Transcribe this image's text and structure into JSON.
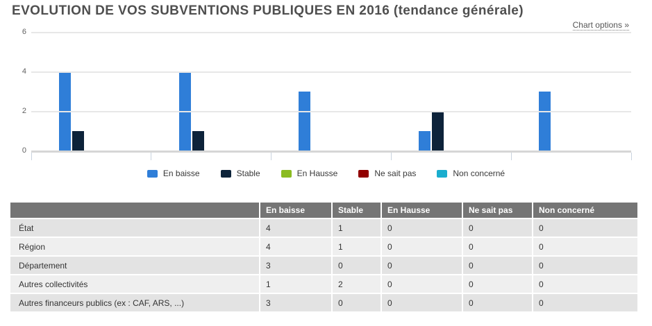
{
  "header": {
    "title": "EVOLUTION DE VOS SUBVENTIONS PUBLIQUES EN 2016 (tendance générale)",
    "chart_options_label": "Chart options »"
  },
  "chart_data": {
    "type": "bar",
    "categories": [
      "État",
      "Région",
      "Département",
      "Autres collectivités",
      "Autres financeurs publics (ex : CAF, ARS, ...)"
    ],
    "series": [
      {
        "name": "En baisse",
        "color": "#2f7ed8",
        "values": [
          4,
          4,
          3,
          1,
          3
        ]
      },
      {
        "name": "Stable",
        "color": "#0d233a",
        "values": [
          1,
          1,
          0,
          2,
          0
        ]
      },
      {
        "name": "En Hausse",
        "color": "#8bbc21",
        "values": [
          0,
          0,
          0,
          0,
          0
        ]
      },
      {
        "name": "Ne sait pas",
        "color": "#910000",
        "values": [
          0,
          0,
          0,
          0,
          0
        ]
      },
      {
        "name": "Non concerné",
        "color": "#1aadce",
        "values": [
          0,
          0,
          0,
          0,
          0
        ]
      }
    ],
    "title": "",
    "xlabel": "",
    "ylabel": "",
    "ylim": [
      0,
      6
    ],
    "yticks": [
      0,
      2,
      4,
      6
    ],
    "grid": true,
    "legend_position": "bottom"
  },
  "table": {
    "columns": [
      "",
      "En baisse",
      "Stable",
      "En Hausse",
      "Ne sait pas",
      "Non concerné"
    ],
    "rows": [
      {
        "label": "État",
        "values": [
          4,
          1,
          0,
          0,
          0
        ]
      },
      {
        "label": "Région",
        "values": [
          4,
          1,
          0,
          0,
          0
        ]
      },
      {
        "label": "Département",
        "values": [
          3,
          0,
          0,
          0,
          0
        ]
      },
      {
        "label": "Autres collectivités",
        "values": [
          1,
          2,
          0,
          0,
          0
        ]
      },
      {
        "label": "Autres financeurs publics (ex : CAF, ARS, ...)",
        "values": [
          3,
          0,
          0,
          0,
          0
        ]
      }
    ]
  }
}
